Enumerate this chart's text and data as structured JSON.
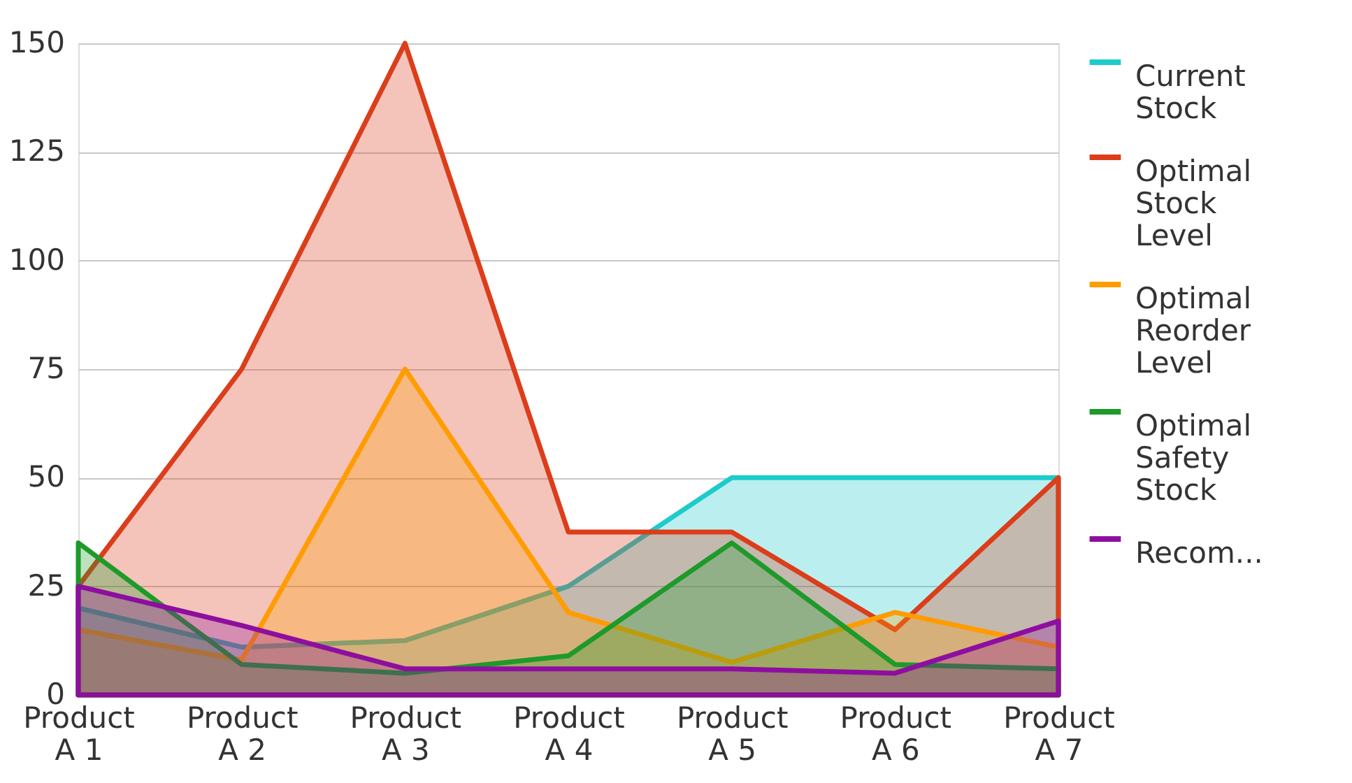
{
  "chart_data": {
    "type": "area",
    "categories": [
      "Product A 1",
      "Product A 2",
      "Product A 3",
      "Product A 4",
      "Product A 5",
      "Product A 6",
      "Product A 7"
    ],
    "series": [
      {
        "name": "Current Stock",
        "color": "#1ecbcb",
        "values": [
          20,
          11,
          12.5,
          25,
          50,
          50,
          50
        ]
      },
      {
        "name": "Optimal Stock Level",
        "color": "#dc3d1a",
        "values": [
          25,
          75,
          150,
          37.5,
          37.5,
          15,
          50
        ]
      },
      {
        "name": "Optimal Reorder Level",
        "color": "#ff9c00",
        "values": [
          15,
          8,
          75,
          19,
          7.5,
          19,
          11
        ]
      },
      {
        "name": "Optimal Safety Stock",
        "color": "#1e9a2a",
        "values": [
          35,
          7,
          5,
          9,
          35,
          7,
          6
        ]
      },
      {
        "name": "Recom...",
        "color": "#8e0ea0",
        "values": [
          25,
          16,
          6,
          6,
          6,
          5,
          17
        ]
      }
    ],
    "ylim": [
      0,
      150
    ],
    "yticks": [
      0,
      25,
      50,
      75,
      100,
      125,
      150
    ],
    "grid": "y",
    "legend": "right"
  }
}
